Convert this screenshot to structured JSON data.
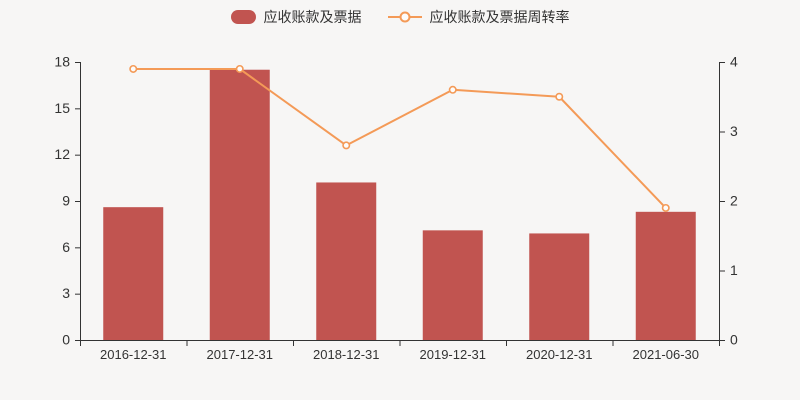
{
  "page": {
    "background": "#f7f6f5",
    "text_color": "#333333",
    "axis_color": "#333333"
  },
  "legend": {
    "position": "top-center",
    "items": [
      {
        "label": "应收账款及票据",
        "type": "bar",
        "color": "#c15450"
      },
      {
        "label": "应收账款及票据周转率",
        "type": "line",
        "color": "#f49a57",
        "marker": "open-circle"
      }
    ]
  },
  "chart_data": {
    "type": "bar",
    "subtype": "bar+line dual axis",
    "title": "",
    "categories": [
      "2016-12-31",
      "2017-12-31",
      "2018-12-31",
      "2019-12-31",
      "2020-12-31",
      "2021-06-30"
    ],
    "series": [
      {
        "name": "应收账款及票据",
        "type": "bar",
        "axis": "left",
        "color": "#c15450",
        "values": [
          8.6,
          17.5,
          10.2,
          7.1,
          6.9,
          8.3
        ]
      },
      {
        "name": "应收账款及票据周转率",
        "type": "line",
        "axis": "right",
        "color": "#f49a57",
        "marker_fill": "#fdfcfb",
        "values": [
          3.9,
          3.9,
          2.8,
          3.6,
          3.5,
          1.9
        ]
      }
    ],
    "left_axis": {
      "min": 0,
      "max": 18,
      "ticks": [
        0,
        3,
        6,
        9,
        12,
        15,
        18
      ]
    },
    "right_axis": {
      "min": 0,
      "max": 4,
      "ticks": [
        0,
        1,
        2,
        3,
        4
      ]
    },
    "xlabel": "",
    "ylabel": "",
    "grid": false,
    "legend_position": "top"
  }
}
